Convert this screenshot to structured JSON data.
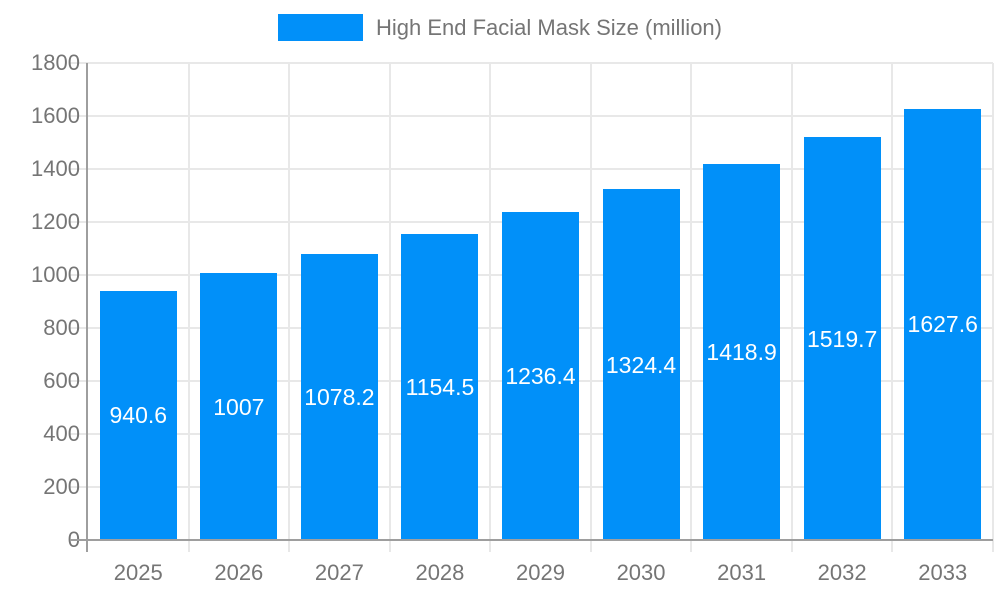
{
  "chart_data": {
    "type": "bar",
    "title": "High End Facial Mask Size (million)",
    "legend": {
      "label": "High End Facial Mask Size (million)",
      "position": "top-center"
    },
    "categories": [
      "2025",
      "2026",
      "2027",
      "2028",
      "2029",
      "2030",
      "2031",
      "2032",
      "2033"
    ],
    "series": [
      {
        "name": "High End Facial Mask Size (million)",
        "values": [
          940.6,
          1007,
          1078.2,
          1154.5,
          1236.4,
          1324.4,
          1418.9,
          1519.7,
          1627.6
        ]
      }
    ],
    "bar_labels": [
      "940.6",
      "1007",
      "1078.2",
      "1154.5",
      "1236.4",
      "1324.4",
      "1418.9",
      "1519.7",
      "1627.6"
    ],
    "xlabel": "",
    "ylabel": "",
    "ylim": [
      0,
      1800
    ],
    "ytick_step": 200,
    "yticks": [
      0,
      200,
      400,
      600,
      800,
      1000,
      1200,
      1400,
      1600,
      1800
    ],
    "grid": true,
    "bar_label_position": "inside-center",
    "colors": {
      "bar": "#0190f9",
      "grid": "#e8e8e8",
      "axis": "#9e9e9e",
      "tick_text": "#757575",
      "legend_text": "#757575",
      "bar_label_text": "#ffffff",
      "background": "#ffffff"
    }
  }
}
